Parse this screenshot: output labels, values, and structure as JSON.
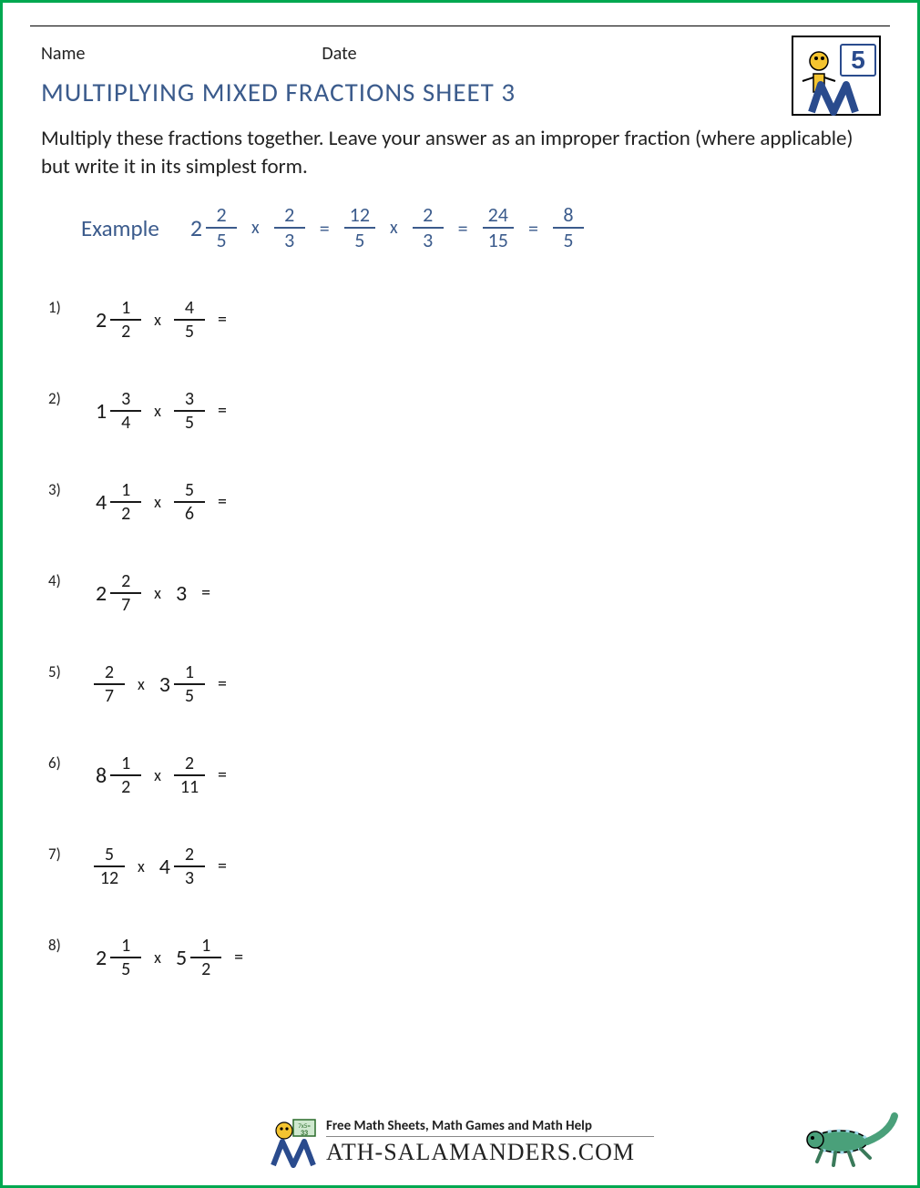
{
  "header": {
    "name_label": "Name",
    "date_label": "Date",
    "title": "MULTIPLYING MIXED FRACTIONS SHEET 3",
    "grade_badge": "5"
  },
  "instructions": "Multiply these fractions together. Leave your answer as an improper fraction (where applicable) but write it in its simplest form.",
  "example": {
    "label": "Example",
    "steps": [
      {
        "type": "mixed",
        "whole": "2",
        "num": "2",
        "den": "5"
      },
      {
        "type": "op",
        "text": "x"
      },
      {
        "type": "frac",
        "num": "2",
        "den": "3"
      },
      {
        "type": "eq",
        "text": "="
      },
      {
        "type": "frac",
        "num": "12",
        "den": "5"
      },
      {
        "type": "op",
        "text": "x"
      },
      {
        "type": "frac",
        "num": "2",
        "den": "3"
      },
      {
        "type": "eq",
        "text": "="
      },
      {
        "type": "frac",
        "num": "24",
        "den": "15"
      },
      {
        "type": "eq",
        "text": "="
      },
      {
        "type": "frac",
        "num": "8",
        "den": "5"
      }
    ]
  },
  "problems": [
    {
      "n": "1)",
      "parts": [
        {
          "type": "mixed",
          "whole": "2",
          "num": "1",
          "den": "2"
        },
        {
          "type": "op",
          "text": "x"
        },
        {
          "type": "frac",
          "num": "4",
          "den": "5"
        },
        {
          "type": "eq",
          "text": "="
        }
      ]
    },
    {
      "n": "2)",
      "parts": [
        {
          "type": "mixed",
          "whole": "1",
          "num": "3",
          "den": "4"
        },
        {
          "type": "op",
          "text": "x"
        },
        {
          "type": "frac",
          "num": "3",
          "den": "5"
        },
        {
          "type": "eq",
          "text": "="
        }
      ]
    },
    {
      "n": "3)",
      "parts": [
        {
          "type": "mixed",
          "whole": "4",
          "num": "1",
          "den": "2"
        },
        {
          "type": "op",
          "text": "x"
        },
        {
          "type": "frac",
          "num": "5",
          "den": "6"
        },
        {
          "type": "eq",
          "text": "="
        }
      ]
    },
    {
      "n": "4)",
      "parts": [
        {
          "type": "mixed",
          "whole": "2",
          "num": "2",
          "den": "7"
        },
        {
          "type": "op",
          "text": "x"
        },
        {
          "type": "whole",
          "whole": "3"
        },
        {
          "type": "eq",
          "text": "="
        }
      ]
    },
    {
      "n": "5)",
      "parts": [
        {
          "type": "frac",
          "num": "2",
          "den": "7"
        },
        {
          "type": "op",
          "text": "x"
        },
        {
          "type": "mixed",
          "whole": "3",
          "num": "1",
          "den": "5"
        },
        {
          "type": "eq",
          "text": "="
        }
      ]
    },
    {
      "n": "6)",
      "parts": [
        {
          "type": "mixed",
          "whole": "8",
          "num": "1",
          "den": "2"
        },
        {
          "type": "op",
          "text": "x"
        },
        {
          "type": "frac",
          "num": "2",
          "den": "11"
        },
        {
          "type": "eq",
          "text": "="
        }
      ]
    },
    {
      "n": "7)",
      "parts": [
        {
          "type": "frac",
          "num": "5",
          "den": "12"
        },
        {
          "type": "op",
          "text": "x"
        },
        {
          "type": "mixed",
          "whole": "4",
          "num": "2",
          "den": "3"
        },
        {
          "type": "eq",
          "text": "="
        }
      ]
    },
    {
      "n": "8)",
      "parts": [
        {
          "type": "mixed",
          "whole": "2",
          "num": "1",
          "den": "5"
        },
        {
          "type": "op",
          "text": "x"
        },
        {
          "type": "mixed",
          "whole": "5",
          "num": "1",
          "den": "2"
        },
        {
          "type": "eq",
          "text": "="
        }
      ]
    }
  ],
  "footer": {
    "line1": "Free Math Sheets, Math Games and Math Help",
    "line2": "ATH-SALAMANDERS.COM"
  },
  "colors": {
    "frame": "#00a850",
    "title": "#3b5b8c",
    "example": "#3b5b8c",
    "text": "#1a1a1a"
  }
}
